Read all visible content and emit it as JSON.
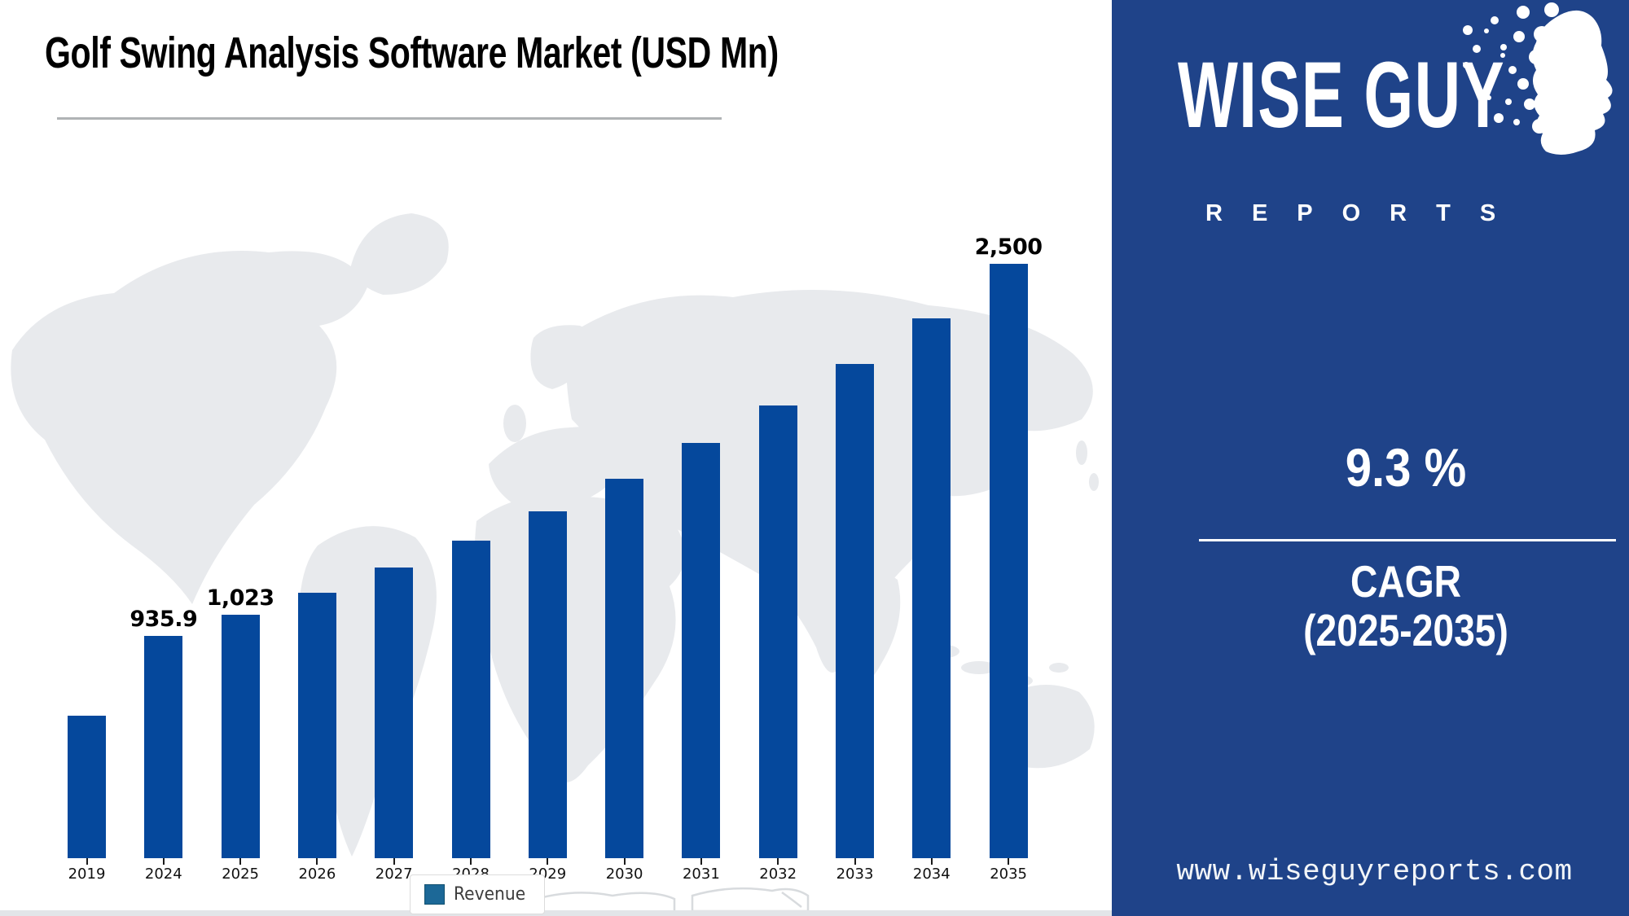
{
  "header": {
    "title": "Golf Swing Analysis Software Market (USD Mn)"
  },
  "chart_data": {
    "type": "bar",
    "title": "Golf Swing Analysis Software Market (USD Mn)",
    "unit": "USD Mn",
    "categories": [
      "2019",
      "2024",
      "2025",
      "2026",
      "2027",
      "2028",
      "2029",
      "2030",
      "2031",
      "2032",
      "2033",
      "2034",
      "2035"
    ],
    "values": [
      599,
      935.9,
      1023,
      1118,
      1222,
      1336,
      1460,
      1596,
      1745,
      1903,
      2080,
      2272,
      2500
    ],
    "data_labels": [
      "",
      "935.9",
      "1,023",
      "",
      "",
      "",
      "",
      "",
      "",
      "",
      "",
      "",
      "2,500"
    ],
    "series": [
      {
        "name": "Revenue",
        "color": "#05489c"
      }
    ],
    "ylim": [
      0,
      2570
    ],
    "grid": false,
    "legend_position": "bottom",
    "xlabel": "",
    "ylabel": ""
  },
  "legend": {
    "label": "Revenue",
    "swatch_color": "#1c6897"
  },
  "sidebar": {
    "background_color": "#1f4389",
    "logo_line1": "WISE GUY",
    "logo_line2": "REPORTS",
    "stat_value": "9.3 %",
    "stat_label_line1": "CAGR",
    "stat_label_line2": "(2025-2035)",
    "website": "www.wiseguyreports.com"
  },
  "colors": {
    "bar_blue": "#05489c",
    "panel_blue": "#1f4389",
    "map_gray": "#e8eaed"
  }
}
